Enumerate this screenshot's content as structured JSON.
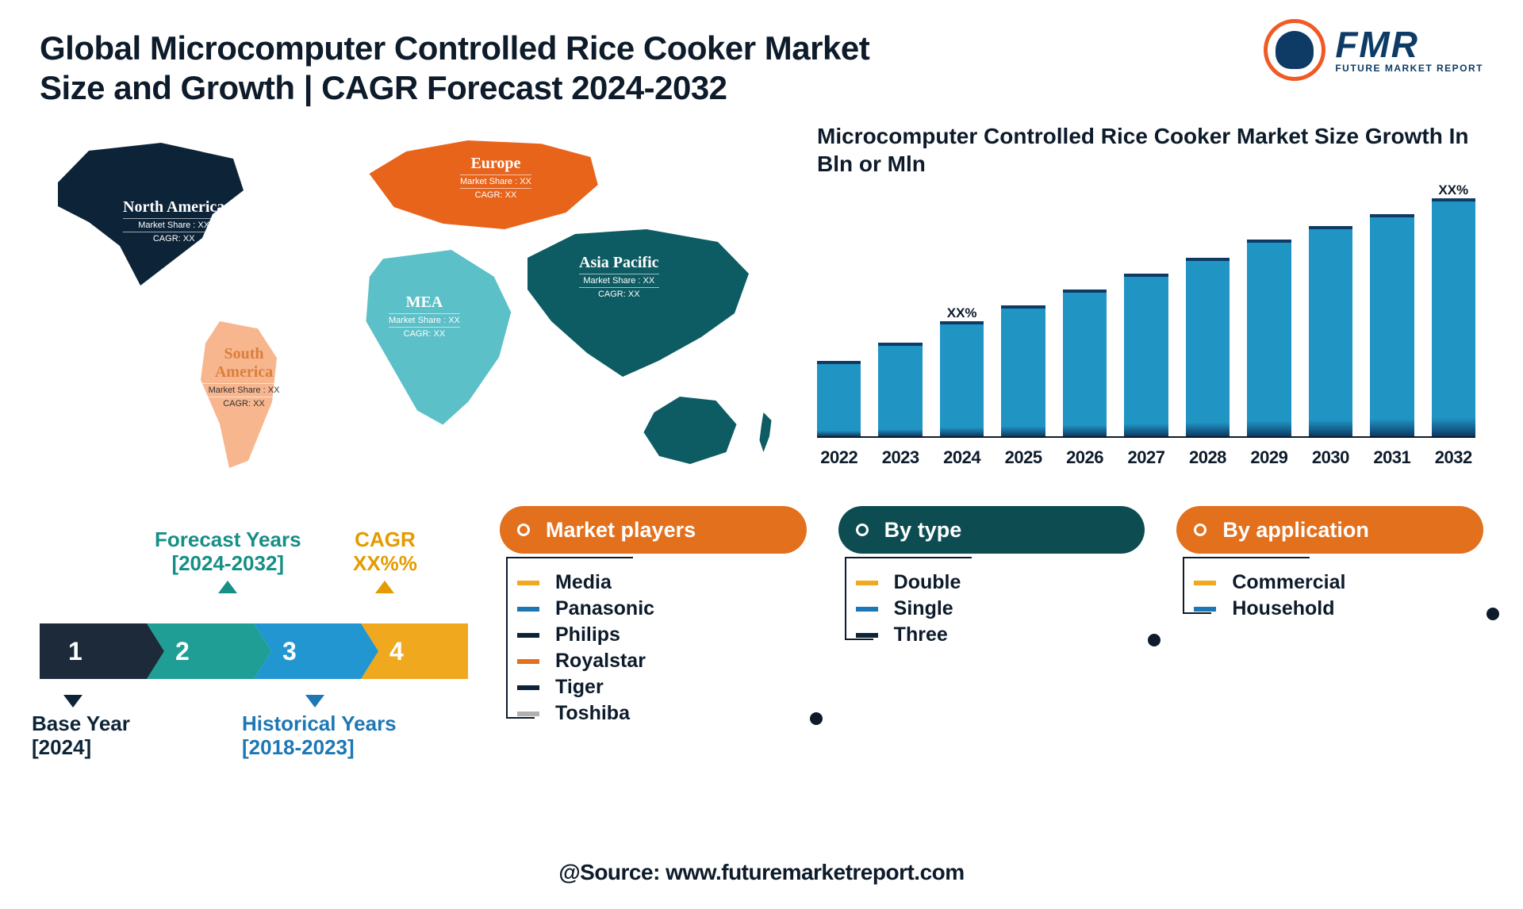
{
  "title": "Global Microcomputer Controlled Rice Cooker Market Size and Growth | CAGR Forecast 2024-2032",
  "logo": {
    "fmr": "FMR",
    "sub": "FUTURE MARKET REPORT"
  },
  "map": {
    "regions": {
      "north_america": {
        "name": "North America",
        "share": "Market Share : XX",
        "cagr": "CAGR: XX",
        "color": "#0d2438"
      },
      "south_america": {
        "name": "South America",
        "share": "Market Share : XX",
        "cagr": "CAGR: XX",
        "color": "#f7b68e"
      },
      "europe": {
        "name": "Europe",
        "share": "Market Share : XX",
        "cagr": "CAGR: XX",
        "color": "#e8641b"
      },
      "mea": {
        "name": "MEA",
        "share": "Market Share : XX",
        "cagr": "CAGR: XX",
        "color": "#5bc0c7"
      },
      "asia_pacific": {
        "name": "Asia Pacific",
        "share": "Market Share : XX",
        "cagr": "CAGR: XX",
        "color": "#0d5c63"
      }
    }
  },
  "bar_chart": {
    "type": "bar",
    "title": "Microcomputer Controlled Rice Cooker Market Size Growth In\nBln or Mln",
    "years": [
      "2022",
      "2023",
      "2024",
      "2025",
      "2026",
      "2027",
      "2028",
      "2029",
      "2030",
      "2031",
      "2032"
    ],
    "heights": [
      95,
      118,
      145,
      165,
      185,
      205,
      225,
      248,
      265,
      280,
      300
    ],
    "bar_color": "#2095c4",
    "bar_top_color": "#0d3b66",
    "year_fontsize": 22,
    "annotations": {
      "2024": "XX%",
      "2032": "XX%"
    }
  },
  "timeline": {
    "forecast": {
      "label": "Forecast Years",
      "value": "[2024-2032]",
      "color": "#168f86"
    },
    "cagr": {
      "label": "CAGR",
      "value": "XX%%",
      "color": "#e39b00"
    },
    "base": {
      "label": "Base Year",
      "value": "[2024]",
      "color": "#0d2438"
    },
    "historic": {
      "label": "Historical Years",
      "value": "[2018-2023]",
      "color": "#1d77b5"
    },
    "segments": [
      "1",
      "2",
      "3",
      "4"
    ],
    "seg_colors": [
      "#1c2a3a",
      "#1e9e95",
      "#2296d0",
      "#f0a81e"
    ]
  },
  "pills": {
    "market_players": {
      "title": "Market players",
      "pill_color": "#e3701c",
      "items": [
        {
          "label": "Media",
          "dash": "#f0a81e"
        },
        {
          "label": "Panasonic",
          "dash": "#1d77b5"
        },
        {
          "label": "Philips",
          "dash": "#0d2438"
        },
        {
          "label": "Royalstar",
          "dash": "#e3701c"
        },
        {
          "label": "Tiger",
          "dash": "#0d2438"
        },
        {
          "label": "Toshiba",
          "dash": "#b0b0b0"
        }
      ]
    },
    "by_type": {
      "title": "By type",
      "pill_color": "#0d4d52",
      "items": [
        {
          "label": "Double",
          "dash": "#f0a81e"
        },
        {
          "label": "Single",
          "dash": "#1d77b5"
        },
        {
          "label": "Three",
          "dash": "#0d2438"
        }
      ]
    },
    "by_application": {
      "title": "By application",
      "pill_color": "#e3701c",
      "items": [
        {
          "label": "Commercial",
          "dash": "#f0a81e"
        },
        {
          "label": "Household",
          "dash": "#1d77b5"
        }
      ]
    }
  },
  "source": "@Source: www.futuremarketreport.com"
}
